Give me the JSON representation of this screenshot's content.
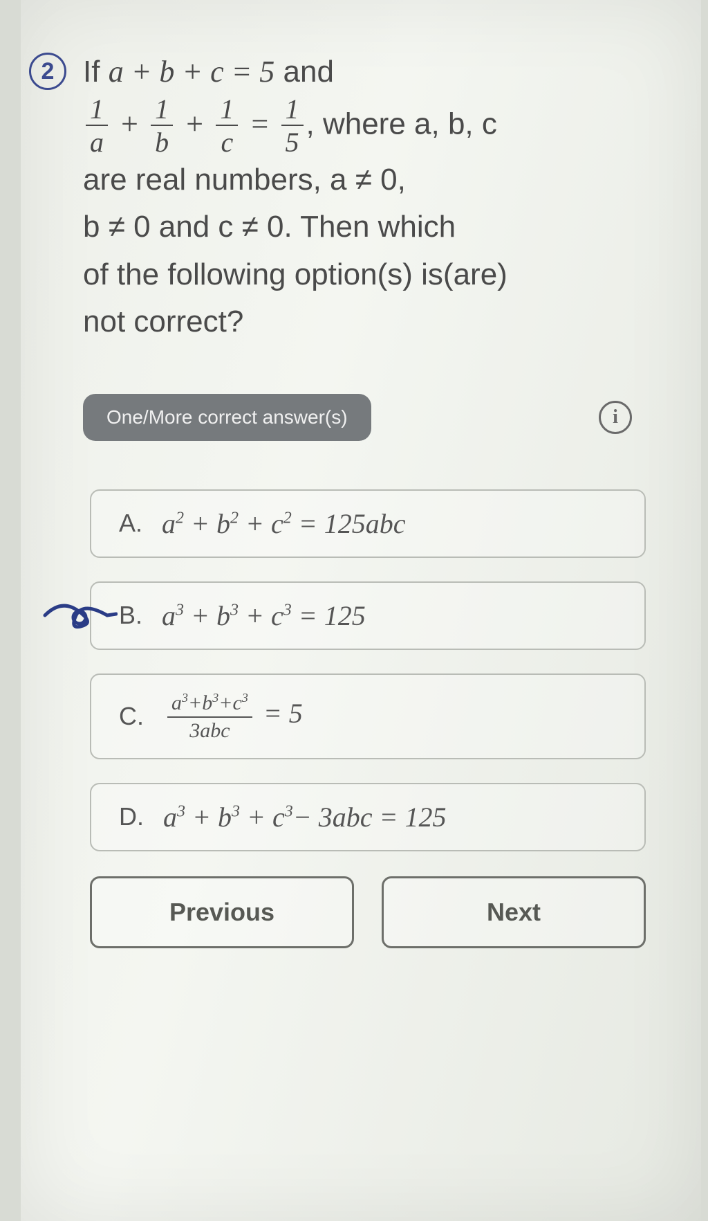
{
  "colors": {
    "page_bg": "#d8dbd4",
    "sheet_bg_light": "#f4f6f1",
    "sheet_bg_dark": "#e6e9e2",
    "text": "#4a4a4a",
    "badge_bg": "#767a7d",
    "badge_text": "#f0f0f0",
    "border_gray": "#b9bcb6",
    "nav_text": "#575954",
    "pen_ink": "#2a3c86"
  },
  "question_number": "2",
  "question": {
    "line1_prefix": "If ",
    "eq1": "a + b + c = 5",
    "line1_suffix": " and",
    "frac_terms": [
      {
        "n": "1",
        "d": "a"
      },
      {
        "n": "1",
        "d": "b"
      },
      {
        "n": "1",
        "d": "c"
      },
      {
        "n": "1",
        "d": "5"
      }
    ],
    "line2_after": ", where a, b, c",
    "line3": "are real numbers,  a  ≠  0,",
    "line4": "b  ≠  0 and  c  ≠  0. Then which",
    "line5": "of the following option(s) is(are)",
    "line6": "not correct?"
  },
  "badge": "One/More correct answer(s)",
  "info_label": "i",
  "options": [
    {
      "letter": "A.",
      "expr_html": "a<sup>2</sup> + b<sup>2</sup> + c<sup>2</sup> = 125abc",
      "penmark": false
    },
    {
      "letter": "B.",
      "expr_html": "a<sup>3</sup> + b<sup>3</sup> + c<sup>3</sup> = 125",
      "penmark": true
    },
    {
      "letter": "C.",
      "expr_html": "<span class=\"ofr\"><span class=\"n\">a<sup>3</sup>+b<sup>3</sup>+c<sup>3</sup></span><span class=\"d\">3abc</span></span> = 5",
      "penmark": false
    },
    {
      "letter": "D.",
      "expr_html": "a<sup>3</sup> + b<sup>3</sup> + c<sup>3</sup>− 3abc = 125",
      "penmark": false
    }
  ],
  "nav": {
    "prev": "Previous",
    "next": "Next"
  }
}
